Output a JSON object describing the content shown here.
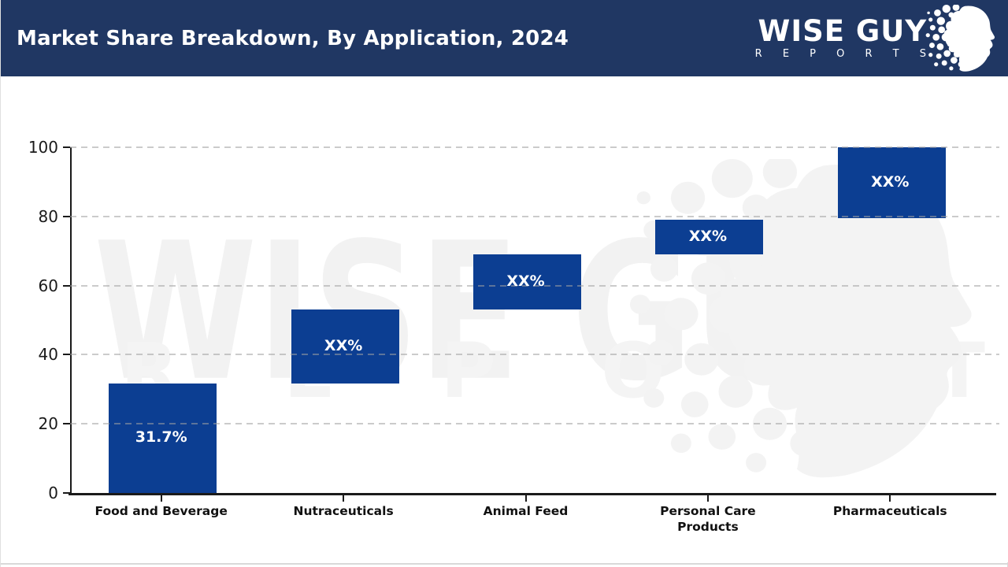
{
  "header": {
    "title": "Market Share Breakdown, By Application, 2024",
    "bg_color": "#203763",
    "logo": {
      "line1": "WISE GUY",
      "line2": "R E P O R T S"
    }
  },
  "watermark": {
    "line1": "WISE GUY",
    "line2": "R E P O R T S"
  },
  "chart_data": {
    "type": "bar",
    "subtype": "waterfall",
    "title": "Market Share Breakdown, By Application, 2024",
    "categories": [
      "Food and Beverage",
      "Nutraceuticals",
      "Animal Feed",
      "Personal Care\nProducts",
      "Pharmaceuticals"
    ],
    "segments": [
      {
        "category": "Food and Beverage",
        "label": "31.7%",
        "start": 0,
        "end": 31.7
      },
      {
        "category": "Nutraceuticals",
        "label": "XX%",
        "start": 31.7,
        "end": 53
      },
      {
        "category": "Animal Feed",
        "label": "XX%",
        "start": 53,
        "end": 69
      },
      {
        "category": "Personal Care Products",
        "label": "XX%",
        "start": 69,
        "end": 79
      },
      {
        "category": "Pharmaceuticals",
        "label": "XX%",
        "start": 79.5,
        "end": 100
      }
    ],
    "xlabel": "",
    "ylabel": "",
    "ylim": [
      0,
      100
    ],
    "yticks": [
      0,
      20,
      40,
      60,
      80,
      100
    ],
    "grid": "horizontal-dashed",
    "legend": "none",
    "bar_color": "#0c3e92",
    "bar_label_color": "#ffffff",
    "axis_color": "#1a1a1a"
  }
}
